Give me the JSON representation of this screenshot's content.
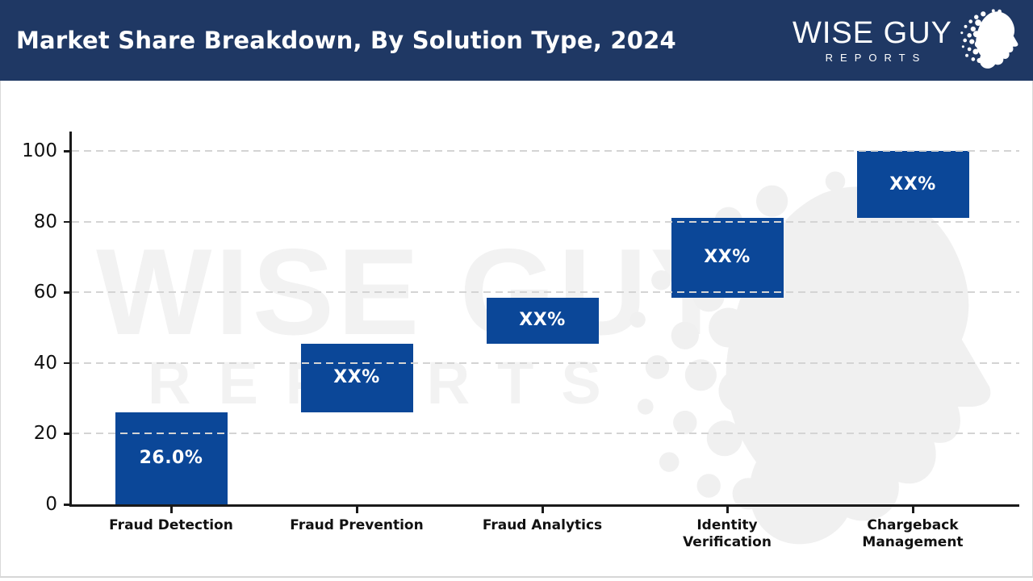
{
  "header": {
    "title": "Market Share Breakdown, By Solution Type, 2024",
    "bg_color": "#1f3864",
    "logo": {
      "line1": "WISE GUY",
      "line2": "REPORTS"
    }
  },
  "watermark": {
    "line1": "WISE GUY",
    "line2": "REPORTS"
  },
  "icons": {
    "logo_head": "dotted-head-profile-icon",
    "watermark_head": "dotted-head-profile-icon"
  },
  "colors": {
    "header_bg": "#1f3864",
    "bar": "#0b4798",
    "gridline": "#d4d4d4",
    "axis": "#1a1a1a",
    "watermark": "#f2f2f2"
  },
  "chart_data": {
    "type": "bar",
    "subtype": "waterfall",
    "title": "Market Share Breakdown, By Solution Type, 2024",
    "xlabel": "",
    "ylabel": "",
    "ylim": [
      0,
      100
    ],
    "y_ticks": [
      0,
      20,
      40,
      60,
      80,
      100
    ],
    "grid": "horizontal-dashed",
    "legend": "none",
    "bar_color": "#0b4798",
    "categories": [
      "Fraud Detection",
      "Fraud Prevention",
      "Fraud Analytics",
      "Identity Verification",
      "Chargeback Management"
    ],
    "segments": [
      {
        "category": "Fraud Detection",
        "label_lines": [
          "Fraud Detection"
        ],
        "start": 0,
        "end": 26,
        "value_label": "26.0%"
      },
      {
        "category": "Fraud Prevention",
        "label_lines": [
          "Fraud Prevention"
        ],
        "start": 26,
        "end": 45.5,
        "value_label": "XX%"
      },
      {
        "category": "Fraud Analytics",
        "label_lines": [
          "Fraud Analytics"
        ],
        "start": 45.5,
        "end": 58.5,
        "value_label": "XX%"
      },
      {
        "category": "Identity Verification",
        "label_lines": [
          "Identity",
          "Verification"
        ],
        "start": 58.5,
        "end": 81,
        "value_label": "XX%"
      },
      {
        "category": "Chargeback Management",
        "label_lines": [
          "Chargeback",
          "Management"
        ],
        "start": 81,
        "end": 100,
        "value_label": "XX%"
      }
    ]
  }
}
